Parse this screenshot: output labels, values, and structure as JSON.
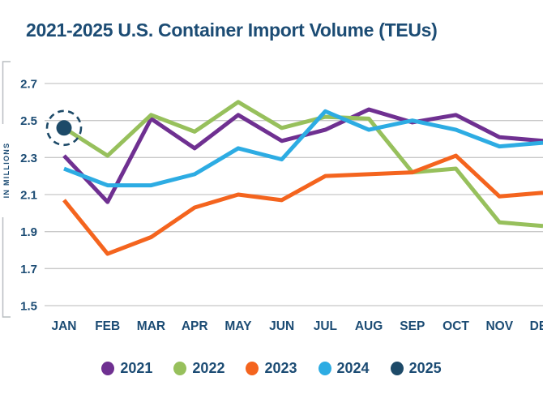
{
  "title": "2021-2025 U.S. Container Import Volume (TEUs)",
  "colors": {
    "title_text": "#1c4c74",
    "axis_text": "#1c4c74",
    "gridline": "#c8c8c8",
    "bracket": "#b9bdc1",
    "background": "#ffffff"
  },
  "chart_data": {
    "type": "line",
    "title": "2021-2025 U.S. Container Import Volume (TEUs)",
    "ylabel": "IN MILLIONS",
    "xlabel": "",
    "categories": [
      "JAN",
      "FEB",
      "MAR",
      "APR",
      "MAY",
      "JUN",
      "JUL",
      "AUG",
      "SEP",
      "OCT",
      "NOV",
      "DEC"
    ],
    "yticks": [
      2.7,
      2.5,
      2.3,
      2.1,
      1.9,
      1.7,
      1.5
    ],
    "ylim": [
      1.5,
      2.7
    ],
    "grid": "horizontal",
    "legend_position": "bottom",
    "series": [
      {
        "name": "2021",
        "color": "#6f3091",
        "values": [
          2.31,
          2.06,
          2.51,
          2.35,
          2.53,
          2.39,
          2.45,
          2.56,
          2.49,
          2.53,
          2.41,
          2.39
        ]
      },
      {
        "name": "2022",
        "color": "#97c05c",
        "values": [
          2.46,
          2.31,
          2.53,
          2.44,
          2.6,
          2.46,
          2.52,
          2.51,
          2.22,
          2.24,
          1.95,
          1.93
        ]
      },
      {
        "name": "2023",
        "color": "#f4641e",
        "values": [
          2.07,
          1.78,
          1.87,
          2.03,
          2.1,
          2.07,
          2.2,
          2.21,
          2.22,
          2.31,
          2.09,
          2.11
        ]
      },
      {
        "name": "2024",
        "color": "#2dace3",
        "values": [
          2.24,
          2.15,
          2.15,
          2.21,
          2.35,
          2.29,
          2.55,
          2.45,
          2.5,
          2.45,
          2.36,
          2.38
        ]
      },
      {
        "name": "2025",
        "color": "#1d4a68",
        "values": [
          2.46
        ],
        "marker": "dot",
        "highlight": "dashed-circle"
      }
    ],
    "annotations": [
      {
        "type": "dashed-circle",
        "series": "2025",
        "month": "JAN",
        "value": 2.46
      }
    ]
  }
}
